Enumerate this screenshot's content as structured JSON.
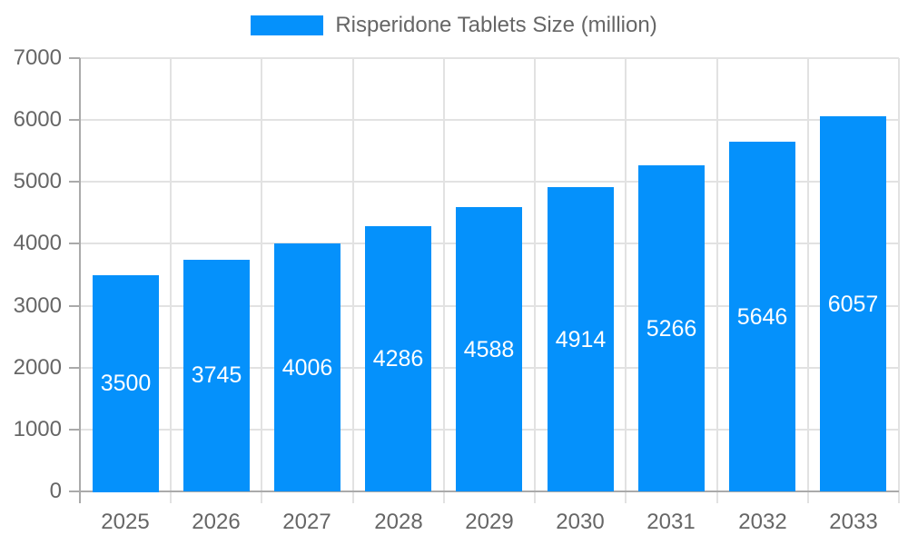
{
  "chart_data": {
    "type": "bar",
    "title": "",
    "legend": "Risperidone Tablets Size (million)",
    "legend_position": "top",
    "categories": [
      "2025",
      "2026",
      "2027",
      "2028",
      "2029",
      "2030",
      "2031",
      "2032",
      "2033"
    ],
    "series": [
      {
        "name": "Risperidone Tablets Size (million)",
        "values": [
          3500,
          3745,
          4006,
          4286,
          4588,
          4914,
          5266,
          5646,
          6057
        ]
      }
    ],
    "data_labels_shown": true,
    "xlabel": "",
    "ylabel": "",
    "ylim": [
      0,
      7000
    ],
    "ytick_step": 1000,
    "grid": true,
    "colors": {
      "bar": "#0591fb",
      "bar_value_label": "#ffffff",
      "axis_text": "#666666",
      "legend_text": "#666666",
      "gridline": "#e2e2e2",
      "axis_line": "#aaaaaa"
    }
  }
}
